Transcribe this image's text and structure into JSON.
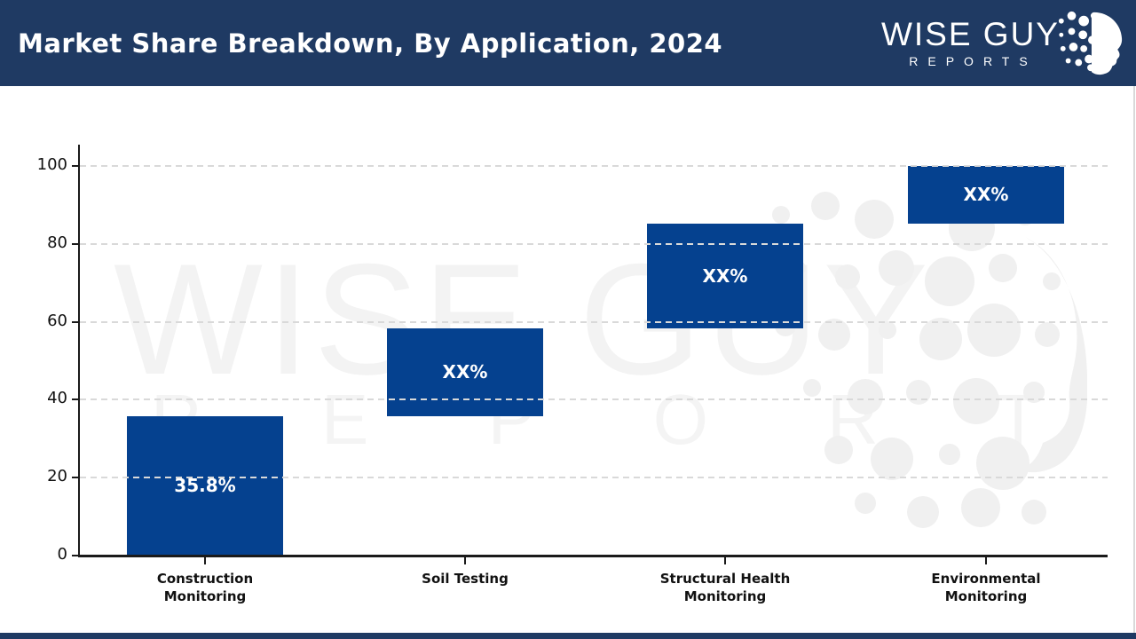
{
  "header": {
    "title": "Market Share Breakdown, By Application, 2024",
    "logo": {
      "line1": "WISE GUY",
      "line2": "REPORTS"
    }
  },
  "watermark": {
    "line1": "WISE GUY",
    "line2": "R E P O R T S"
  },
  "colors": {
    "header_bg": "#1f3a63",
    "footer_bg": "#1f3a63",
    "bar": "#05418f",
    "bar_label": "#ffffff",
    "grid": "#d9d9d9",
    "axis": "#1a1a1a"
  },
  "chart_data": {
    "type": "bar",
    "subtype": "waterfall",
    "title": "Market Share Breakdown, By Application, 2024",
    "categories": [
      "Construction Monitoring",
      "Soil Testing",
      "Structural Health Monitoring",
      "Environmental Monitoring"
    ],
    "segments": [
      {
        "category": "Construction Monitoring",
        "start": 0,
        "end": 35.8,
        "value": 35.8,
        "label": "35.8%"
      },
      {
        "category": "Soil Testing",
        "start": 35.8,
        "end": 58.4,
        "value": 22.6,
        "label": "XX%"
      },
      {
        "category": "Structural Health Monitoring",
        "start": 58.4,
        "end": 85.2,
        "value": 26.8,
        "label": "XX%"
      },
      {
        "category": "Environmental Monitoring",
        "start": 85.2,
        "end": 100,
        "value": 14.8,
        "label": "XX%"
      }
    ],
    "yticks": [
      0,
      20,
      40,
      60,
      80,
      100
    ],
    "ylim": [
      0,
      107
    ],
    "xlabel": "",
    "ylabel": "",
    "grid": "horizontal-dashed",
    "legend": "none",
    "bar_color": "#05418f",
    "label_color": "#ffffff"
  }
}
